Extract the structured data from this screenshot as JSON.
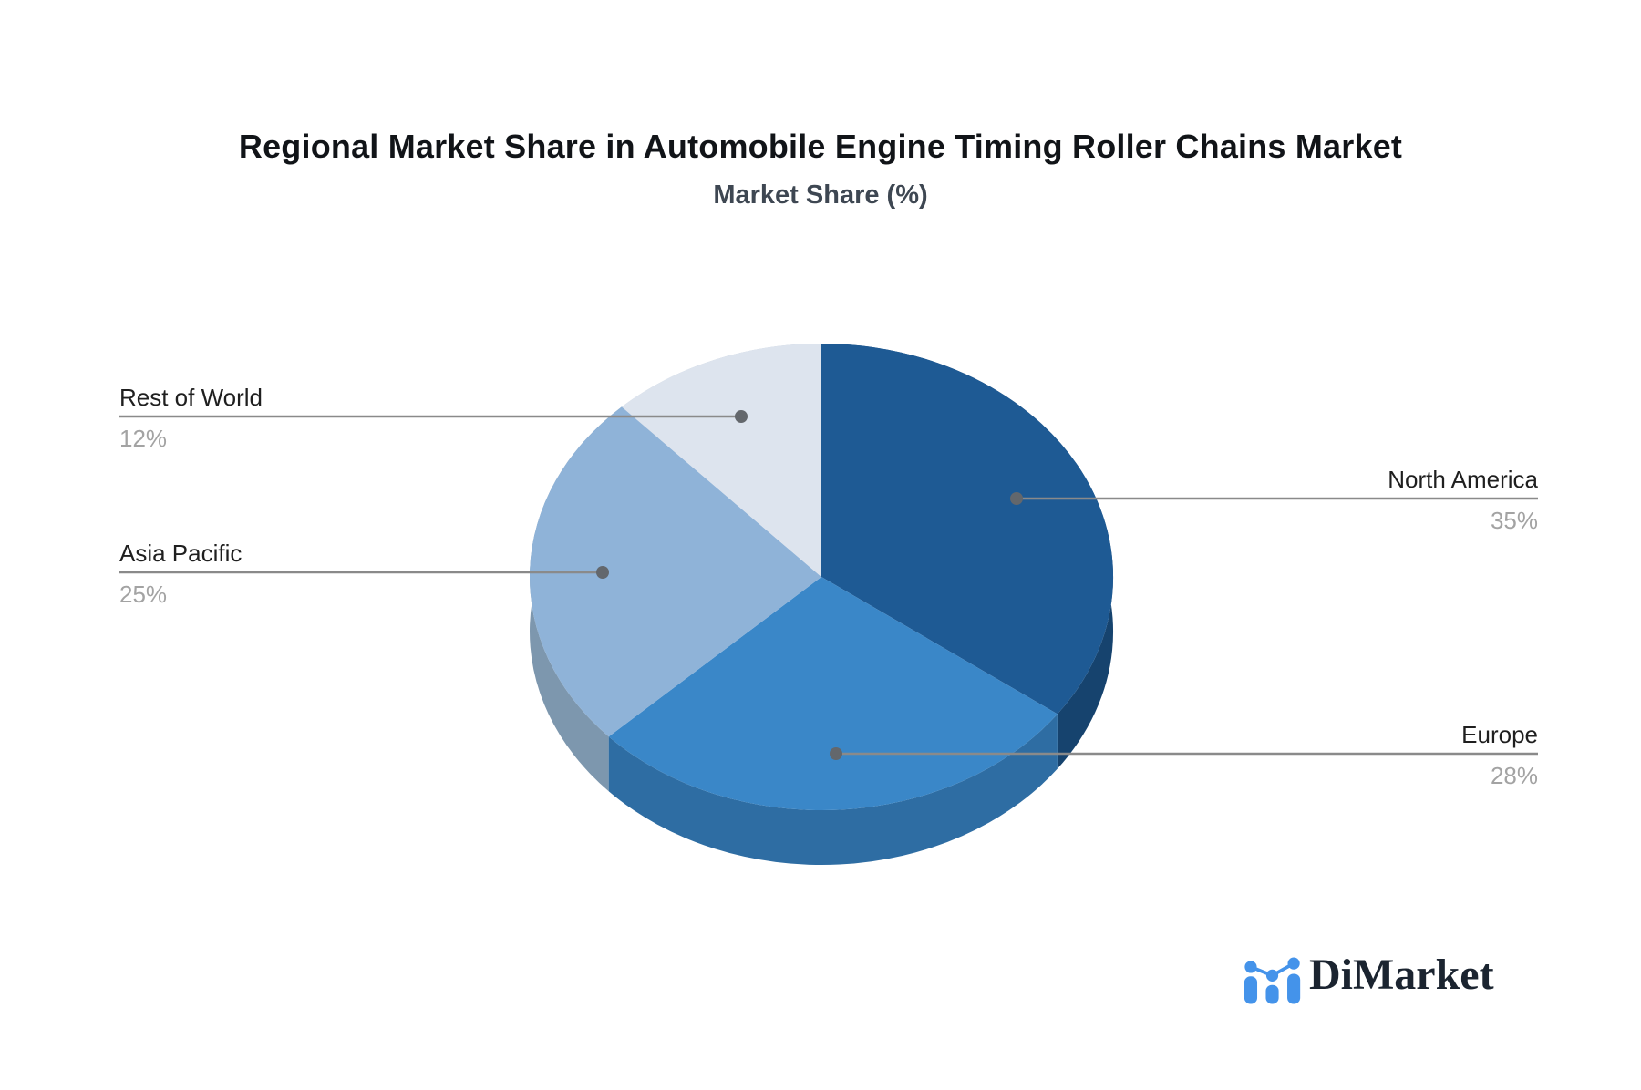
{
  "title": "Regional Market Share in Automobile Engine Timing Roller Chains Market",
  "subtitle": "Market Share (%)",
  "chart_data": {
    "type": "pie",
    "style": "3d",
    "title": "Regional Market Share in Automobile Engine Timing Roller Chains Market",
    "subtitle": "Market Share (%)",
    "unit": "%",
    "start_angle_deg": 90,
    "direction": "clockwise",
    "categories": [
      "North America",
      "Europe",
      "Asia Pacific",
      "Rest of World"
    ],
    "values": [
      35,
      28,
      25,
      12
    ],
    "slices": [
      {
        "label": "North America",
        "value": 35,
        "percent_label": "35%",
        "color": "#1e5a94",
        "side_color": "#16436e"
      },
      {
        "label": "Europe",
        "value": 28,
        "percent_label": "28%",
        "color": "#3a87c8",
        "side_color": "#2e6da3"
      },
      {
        "label": "Asia Pacific",
        "value": 25,
        "percent_label": "25%",
        "color": "#8fb3d8",
        "side_color": "#7d97ae"
      },
      {
        "label": "Rest of World",
        "value": 12,
        "percent_label": "12%",
        "color": "#dde4ee",
        "side_color": "#bac5d5"
      }
    ],
    "callout_line_color": "#8a8a8a",
    "callout_dot_color": "#63676c",
    "label_color": "#1f1f1f",
    "percent_color": "#a3a3a3"
  },
  "logo": {
    "text": "DiMarket",
    "icon": "bar-line-chart-icon",
    "icon_color": "#4493ea",
    "text_color": "#1b2430"
  }
}
